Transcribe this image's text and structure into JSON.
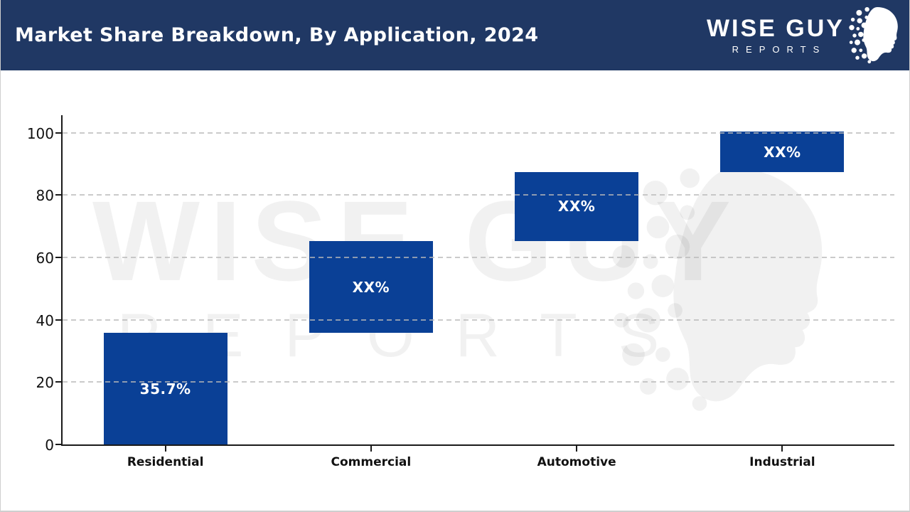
{
  "header": {
    "title": "Market Share Breakdown, By Application, 2024",
    "logo": {
      "line1": "WISE GUY",
      "line2": "REPORTS"
    }
  },
  "watermark": {
    "line1": "WISE GUY",
    "line2": "REPORTS"
  },
  "colors": {
    "header_bg": "#203864",
    "bar_blue": "#0a4096",
    "gridline": "#d9d9d9",
    "axis": "#1a1a1a",
    "bar_label_text": "#ffffff"
  },
  "chart_data": {
    "type": "bar",
    "subtype": "waterfall",
    "title": "Market Share Breakdown, By Application, 2024",
    "categories": [
      "Residential",
      "Commercial",
      "Automotive",
      "Industrial"
    ],
    "segments": [
      {
        "category": "Residential",
        "start": 0,
        "end": 35.7,
        "label": "35.7%"
      },
      {
        "category": "Commercial",
        "start": 35.7,
        "end": 65.3,
        "label": "XX%"
      },
      {
        "category": "Automotive",
        "start": 65.3,
        "end": 87.4,
        "label": "XX%"
      },
      {
        "category": "Industrial",
        "start": 87.4,
        "end": 100.3,
        "label": "XX%"
      }
    ],
    "xlabel": "",
    "ylabel": "",
    "ylim": [
      0,
      105
    ],
    "yticks": [
      0,
      20,
      40,
      60,
      80,
      100
    ],
    "grid": "dashed-horizontal",
    "legend": "none"
  }
}
